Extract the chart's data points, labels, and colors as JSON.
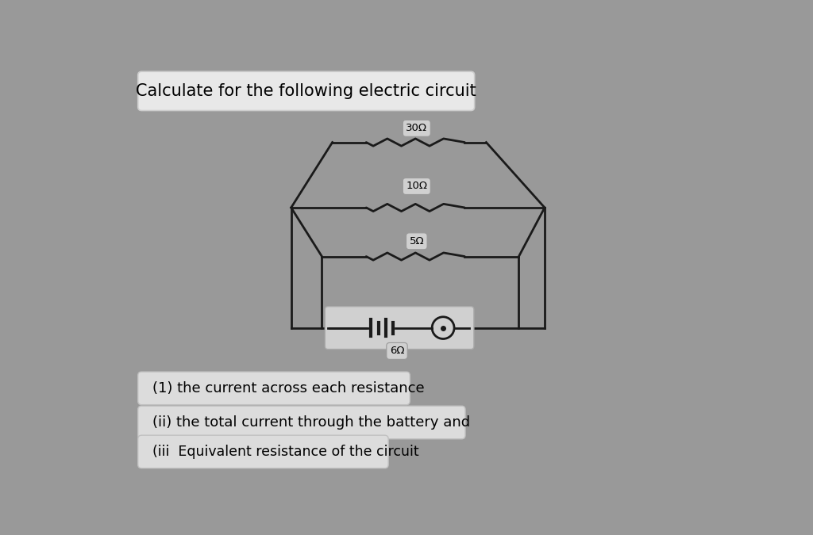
{
  "background_color": "#999999",
  "title": "Calculate for the following electric circuit",
  "title_box_color": "#e8e8e8",
  "title_fontsize": 15,
  "resistor_labels": [
    "30Ω",
    "10Ω",
    "5Ω"
  ],
  "battery_label": "6Ω",
  "q1": "(1) the current across each resistance",
  "q2": "(ii) the total current through the battery and",
  "q3": "(iii  Equivalent resistance of the circuit",
  "line_color": "#1a1a1a",
  "label_box_color": "#d0d0d0"
}
